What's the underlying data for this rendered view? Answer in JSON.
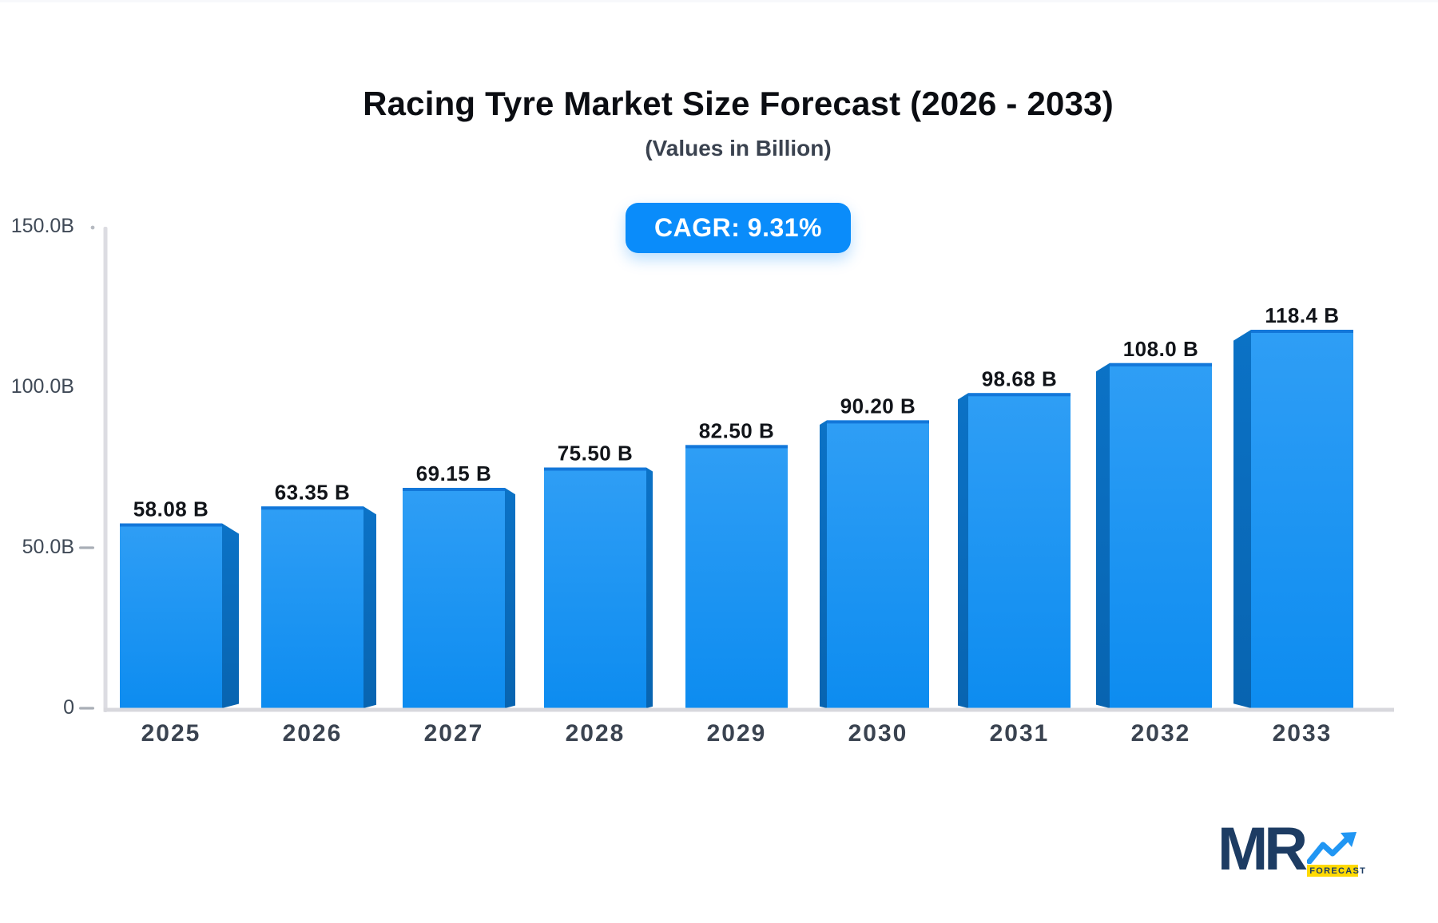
{
  "header": {
    "title": "Racing Tyre Market Size Forecast (2026 - 2033)",
    "subtitle": "(Values in Billion)",
    "cagr_badge": "CAGR: 9.31%"
  },
  "chart_data": {
    "type": "bar",
    "style": "3d-perspective-bars",
    "title": "Racing Tyre Market Size Forecast (2026 - 2033)",
    "subtitle": "(Values in Billion)",
    "cagr_percent": 9.31,
    "unit": "Billion",
    "categories": [
      "2025",
      "2026",
      "2027",
      "2028",
      "2029",
      "2030",
      "2031",
      "2032",
      "2033"
    ],
    "values": [
      58.08,
      63.35,
      69.15,
      75.5,
      82.5,
      90.2,
      98.68,
      108.0,
      118.4
    ],
    "value_labels": [
      "58.08 B",
      "63.35 B",
      "69.15 B",
      "75.50 B",
      "82.50 B",
      "90.20 B",
      "98.68 B",
      "108.0 B",
      "118.4 B"
    ],
    "xlabel": "",
    "ylabel": "",
    "ylim": [
      0,
      150
    ],
    "yticks": [
      {
        "value": 0,
        "label": "0",
        "marker": "dash"
      },
      {
        "value": 50,
        "label": "50.0B",
        "marker": "dash"
      },
      {
        "value": 100,
        "label": "100.0B",
        "marker": "none"
      },
      {
        "value": 150,
        "label": "150.0B",
        "marker": "dot"
      }
    ],
    "grid": false,
    "legend": "none"
  },
  "logo": {
    "mr": "MR",
    "forecast": "FORECAST"
  },
  "colors": {
    "accent_blue": "#0a8cfa",
    "bar_front_top": "#2f9ef5",
    "bar_front_bottom": "#0d8cf0",
    "bar_top_edge": "#1377d9",
    "bar_side_top": "#0b72c6",
    "bar_side_bottom": "#0864b0",
    "axis_gray": "#dcdce2",
    "baseline_gray": "#d8d8dd",
    "tick_gray": "#a9aeb6",
    "ytick_text": "#3f4956",
    "year_text": "#3a4350",
    "value_text": "#111419",
    "logo_navy": "#1d3c63",
    "logo_blue": "#2196f3",
    "logo_yellow": "#ffd902"
  }
}
